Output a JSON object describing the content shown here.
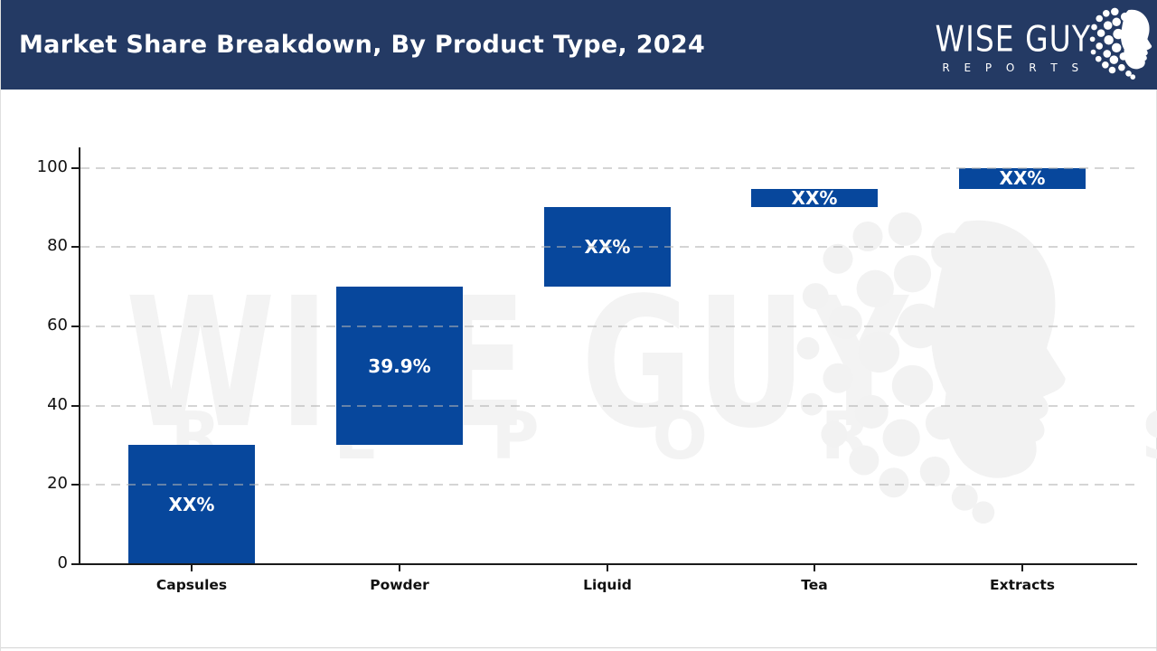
{
  "header": {
    "title": "Market Share Breakdown, By Product Type, 2024",
    "logo": {
      "line1": "WISE GUY",
      "line2": "R E P O R T S"
    }
  },
  "watermark": {
    "line1": "WISE GUY",
    "line2": "REPORTS"
  },
  "chart_data": {
    "type": "bar",
    "subtype": "waterfall",
    "title": "Market Share Breakdown, By Product Type, 2024",
    "categories": [
      "Capsules",
      "Powder",
      "Liquid",
      "Tea",
      "Extracts"
    ],
    "segments": [
      {
        "category": "Capsules",
        "start": 0,
        "end": 30,
        "label": "XX%"
      },
      {
        "category": "Powder",
        "start": 30,
        "end": 69.9,
        "label": "39.9%"
      },
      {
        "category": "Liquid",
        "start": 69.9,
        "end": 90,
        "label": "XX%"
      },
      {
        "category": "Tea",
        "start": 90,
        "end": 94.6,
        "label": "XX%"
      },
      {
        "category": "Extracts",
        "start": 94.6,
        "end": 100,
        "label": "XX%"
      }
    ],
    "yticks": [
      0,
      20,
      40,
      60,
      80,
      100
    ],
    "ylim": [
      0,
      105
    ],
    "xlabel": "",
    "ylabel": "",
    "bar_color": "#07479c",
    "grid": "dashed-horizontal",
    "legend": "none"
  }
}
